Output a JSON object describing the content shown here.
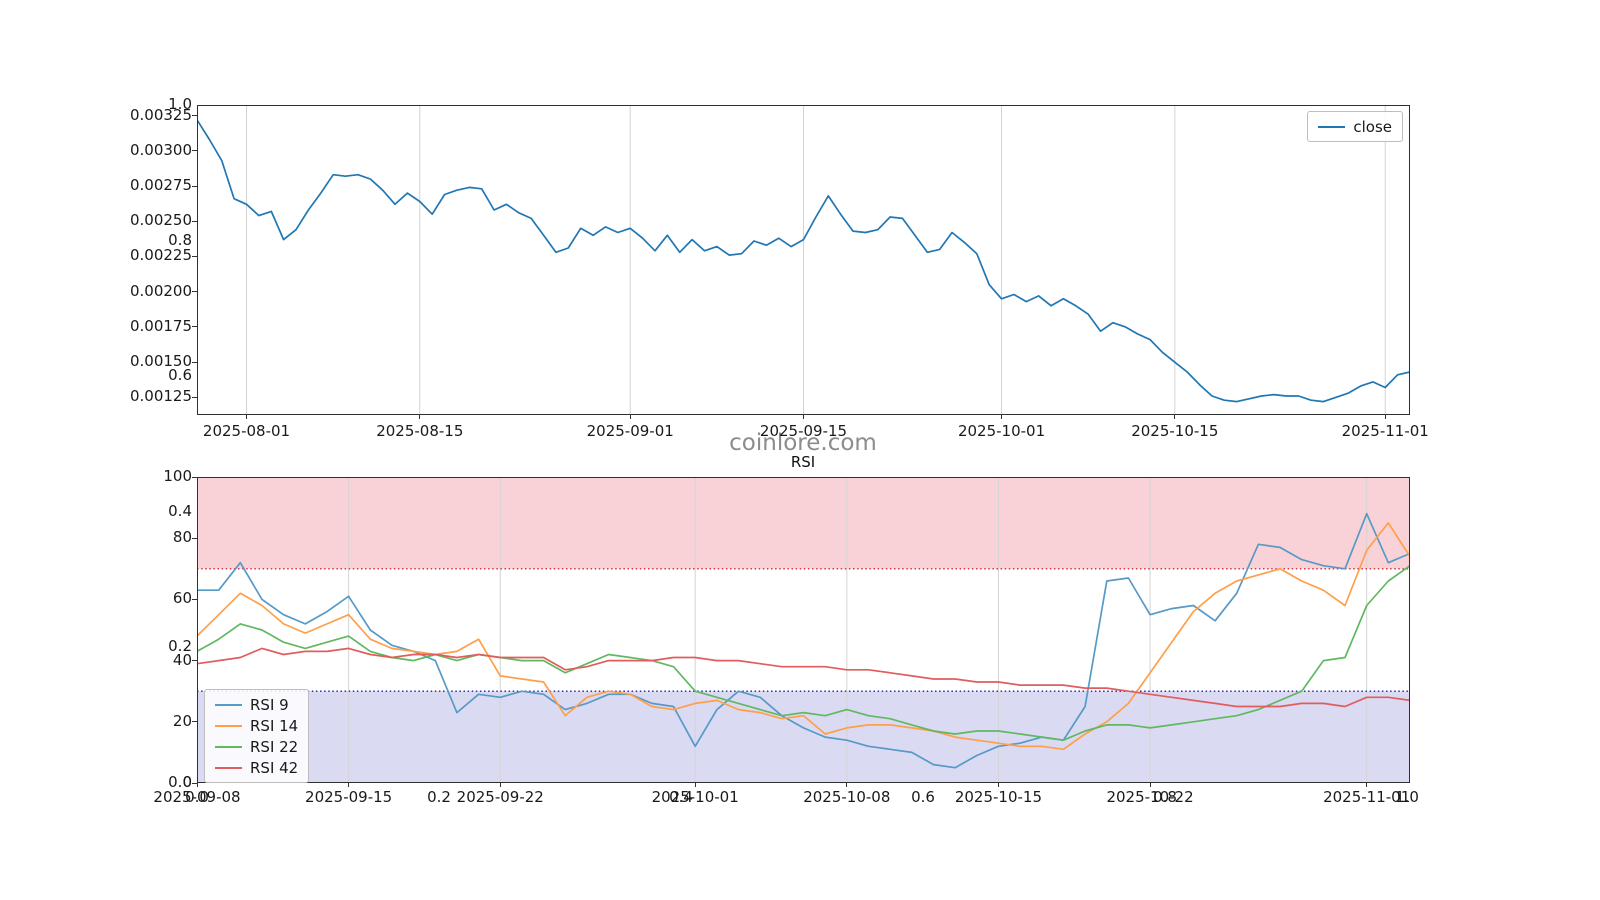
{
  "watermark": "coinlore.com",
  "overlay_axis": {
    "xticks": [
      "0.0",
      "0.2",
      "0.4",
      "0.6",
      "0.8",
      "1.0"
    ],
    "yticks": [
      "0.0",
      "0.2",
      "0.4",
      "0.6",
      "0.8",
      "1.0"
    ]
  },
  "chart_data": [
    {
      "type": "line",
      "name": "price",
      "title": "",
      "legend_position": "top-right",
      "ylim": [
        0.001125,
        0.003325
      ],
      "yticks": [
        "0.00125",
        "0.00150",
        "0.00175",
        "0.00200",
        "0.00225",
        "0.00250",
        "0.00275",
        "0.00300",
        "0.00325"
      ],
      "n_points": 99,
      "xticks": [
        {
          "label": "2025-08-01",
          "pos": 4
        },
        {
          "label": "2025-08-15",
          "pos": 18
        },
        {
          "label": "2025-09-01",
          "pos": 35
        },
        {
          "label": "2025-09-15",
          "pos": 49
        },
        {
          "label": "2025-10-01",
          "pos": 65
        },
        {
          "label": "2025-10-15",
          "pos": 79
        },
        {
          "label": "2025-11-01",
          "pos": 96
        }
      ],
      "series": [
        {
          "name": "close",
          "color": "#1f77b4",
          "values": [
            0.00322,
            0.00308,
            0.00293,
            0.00266,
            0.00262,
            0.00254,
            0.00257,
            0.00237,
            0.00244,
            0.00258,
            0.0027,
            0.00283,
            0.00282,
            0.00283,
            0.0028,
            0.00272,
            0.00262,
            0.0027,
            0.00264,
            0.00255,
            0.00269,
            0.00272,
            0.00274,
            0.00273,
            0.00258,
            0.00262,
            0.00256,
            0.00252,
            0.0024,
            0.00228,
            0.00231,
            0.00245,
            0.0024,
            0.00246,
            0.00242,
            0.00245,
            0.00238,
            0.00229,
            0.0024,
            0.00228,
            0.00237,
            0.00229,
            0.00232,
            0.00226,
            0.00227,
            0.00236,
            0.00233,
            0.00238,
            0.00232,
            0.00237,
            0.00253,
            0.00268,
            0.00255,
            0.00243,
            0.00242,
            0.00244,
            0.00253,
            0.00252,
            0.0024,
            0.00228,
            0.0023,
            0.00242,
            0.00235,
            0.00227,
            0.00205,
            0.00195,
            0.00198,
            0.00193,
            0.00197,
            0.0019,
            0.00195,
            0.0019,
            0.00184,
            0.00172,
            0.00178,
            0.00175,
            0.0017,
            0.00166,
            0.00157,
            0.0015,
            0.00143,
            0.00134,
            0.00126,
            0.00123,
            0.00122,
            0.00124,
            0.00126,
            0.00127,
            0.00126,
            0.00126,
            0.00123,
            0.00122,
            0.00125,
            0.00128,
            0.00133,
            0.00136,
            0.00132,
            0.00141,
            0.00143
          ]
        }
      ]
    },
    {
      "type": "line",
      "name": "rsi",
      "title": "RSI",
      "legend_position": "bottom-left",
      "ylim": [
        0,
        100
      ],
      "yticks": [
        "0",
        "20",
        "40",
        "60",
        "80",
        "100"
      ],
      "n_points": 57,
      "xticks": [
        {
          "label": "2025-09-08",
          "pos": 0
        },
        {
          "label": "2025-09-15",
          "pos": 7
        },
        {
          "label": "2025-09-22",
          "pos": 14
        },
        {
          "label": "2025-10-01",
          "pos": 23
        },
        {
          "label": "2025-10-08",
          "pos": 30
        },
        {
          "label": "2025-10-15",
          "pos": 37
        },
        {
          "label": "2025-10-22",
          "pos": 44
        },
        {
          "label": "2025-11-01",
          "pos": 54
        }
      ],
      "bands": [
        {
          "from": 70,
          "to": 100,
          "color": "#f9d2d8"
        },
        {
          "from": 0,
          "to": 30,
          "color": "#dbdaf3"
        }
      ],
      "hlines": [
        {
          "y": 70,
          "color": "#cc2b39"
        },
        {
          "y": 30,
          "color": "#1b1bb3"
        }
      ],
      "series": [
        {
          "name": "RSI 9",
          "color": "#5799c7",
          "values": [
            63,
            63,
            72,
            60,
            55,
            52,
            56,
            61,
            50,
            45,
            43,
            40,
            23,
            29,
            28,
            30,
            29,
            24,
            26,
            29,
            29,
            26,
            25,
            12,
            24,
            30,
            28,
            22,
            18,
            15,
            14,
            12,
            11,
            10,
            6,
            5,
            9,
            12,
            13,
            15,
            14,
            25,
            66,
            67,
            55,
            57,
            58,
            53,
            62,
            78,
            77,
            73,
            71,
            70,
            88,
            72,
            75
          ]
        },
        {
          "name": "RSI 14",
          "color": "#ff9f4a",
          "values": [
            48,
            55,
            62,
            58,
            52,
            49,
            52,
            55,
            47,
            44,
            43,
            42,
            43,
            47,
            35,
            34,
            33,
            22,
            28,
            30,
            29,
            25,
            24,
            26,
            27,
            24,
            23,
            21,
            22,
            16,
            18,
            19,
            19,
            18,
            17,
            15,
            14,
            13,
            12,
            12,
            11,
            16,
            20,
            26,
            36,
            46,
            56,
            62,
            66,
            68,
            70,
            66,
            63,
            58,
            76,
            85,
            74
          ]
        },
        {
          "name": "RSI 22",
          "color": "#61b861",
          "values": [
            43,
            47,
            52,
            50,
            46,
            44,
            46,
            48,
            43,
            41,
            40,
            42,
            40,
            42,
            41,
            40,
            40,
            36,
            39,
            42,
            41,
            40,
            38,
            30,
            28,
            26,
            24,
            22,
            23,
            22,
            24,
            22,
            21,
            19,
            17,
            16,
            17,
            17,
            16,
            15,
            14,
            17,
            19,
            19,
            18,
            19,
            20,
            21,
            22,
            24,
            27,
            30,
            40,
            41,
            58,
            66,
            71
          ]
        },
        {
          "name": "RSI 42",
          "color": "#e05d5e",
          "values": [
            39,
            40,
            41,
            44,
            42,
            43,
            43,
            44,
            42,
            41,
            42,
            42,
            41,
            42,
            41,
            41,
            41,
            37,
            38,
            40,
            40,
            40,
            41,
            41,
            40,
            40,
            39,
            38,
            38,
            38,
            37,
            37,
            36,
            35,
            34,
            34,
            33,
            33,
            32,
            32,
            32,
            31,
            31,
            30,
            29,
            28,
            27,
            26,
            25,
            25,
            25,
            26,
            26,
            25,
            28,
            28,
            27
          ]
        }
      ]
    }
  ]
}
